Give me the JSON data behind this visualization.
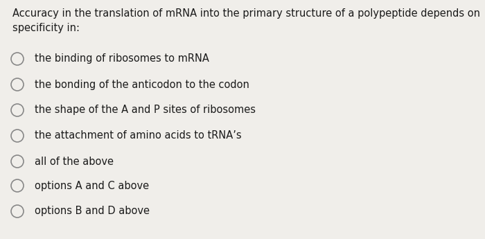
{
  "title": "Accuracy in the translation of mRNA into the primary structure of a polypeptide depends on\nspecificity in:",
  "options": [
    "the binding of ribosomes to mRNA",
    "the bonding of the anticodon to the codon",
    "the shape of the A and P sites of ribosomes",
    "the attachment of amino acids to tRNA’s",
    "all of the above",
    "options A and C above",
    "options B and D above"
  ],
  "bg_color": "#f0eeea",
  "text_color": "#1a1a1a",
  "circle_edgecolor": "#888888",
  "title_fontsize": 10.5,
  "option_fontsize": 10.5,
  "fig_width": 7.0,
  "fig_height": 3.45
}
